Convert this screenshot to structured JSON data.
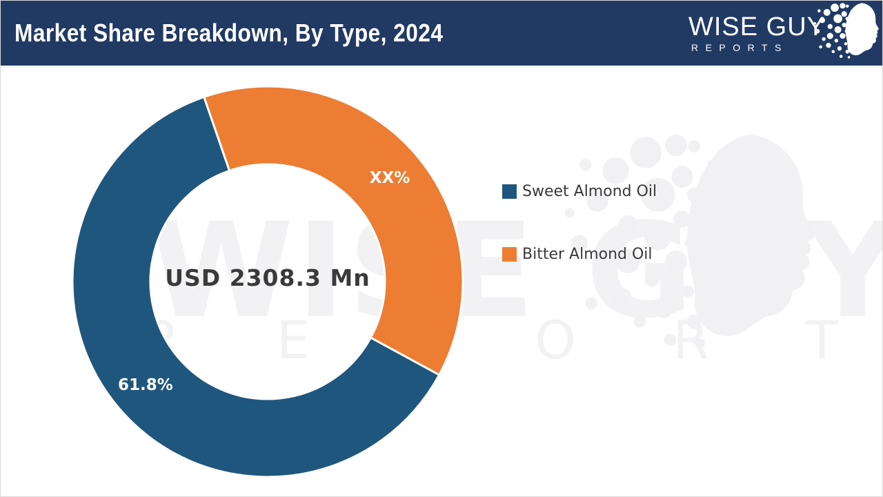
{
  "header": {
    "title": "Market Share Breakdown, By Type, 2024",
    "logo": {
      "line1": "WISE GUY",
      "line2": "REPORTS"
    }
  },
  "colors": {
    "header_navy": "#213A64",
    "sweet_blue": "#1F567E",
    "bitter_orange": "#EC7D33",
    "chart_text_dark": "#3A3A3A",
    "watermark_gray": "#F2F2F4"
  },
  "chart_data": {
    "type": "donut",
    "title": "Market Share Breakdown, By Type, 2024",
    "center_label": "USD 2308.3 Mn",
    "start_angle_deg": 118.5,
    "legend_position": "right",
    "segments": [
      {
        "name": "Sweet Almond Oil",
        "value_pct": 61.8,
        "slice_label": "61.8%",
        "color": "#1F567E"
      },
      {
        "name": "Bitter Almond Oil",
        "value_pct": 38.2,
        "slice_label": "XX%",
        "color": "#EC7D33"
      }
    ]
  },
  "watermark": {
    "line1": "WISE GUY",
    "line2": "R E P O R T S"
  }
}
